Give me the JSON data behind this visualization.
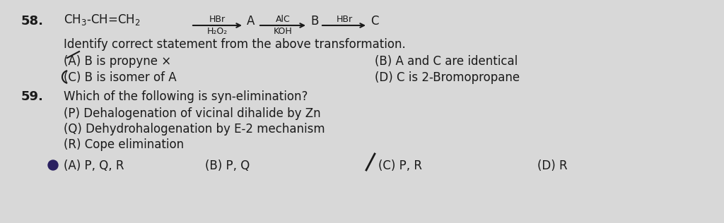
{
  "bg_color": "#d8d8d8",
  "text_color": "#1a1a1a",
  "q58_number": "58.",
  "q59_number": "59.",
  "q58_identify": "Identify correct statement from the above transformation.",
  "q58_optA": "(A) B is propyne ×",
  "q58_optB": "(B) A and C are identical",
  "q58_optC": "(C) B is isomer of A",
  "q58_optD": "(D) C is 2-Bromopropane",
  "q59_question": "Which of the following is syn-elimination?",
  "q59_P": "(P) Dehalogenation of vicinal dihalide by Zn",
  "q59_Q": "(Q) Dehydrohalogenation by E-2 mechanism",
  "q59_R": "(R) Cope elimination",
  "q59_optA": "(A) P, Q, R",
  "q59_optB": "(B) P, Q",
  "q59_optC": "(C) P, R",
  "q59_optD": "(D) R",
  "font_size_main": 12,
  "font_size_small": 9,
  "font_size_number": 13
}
